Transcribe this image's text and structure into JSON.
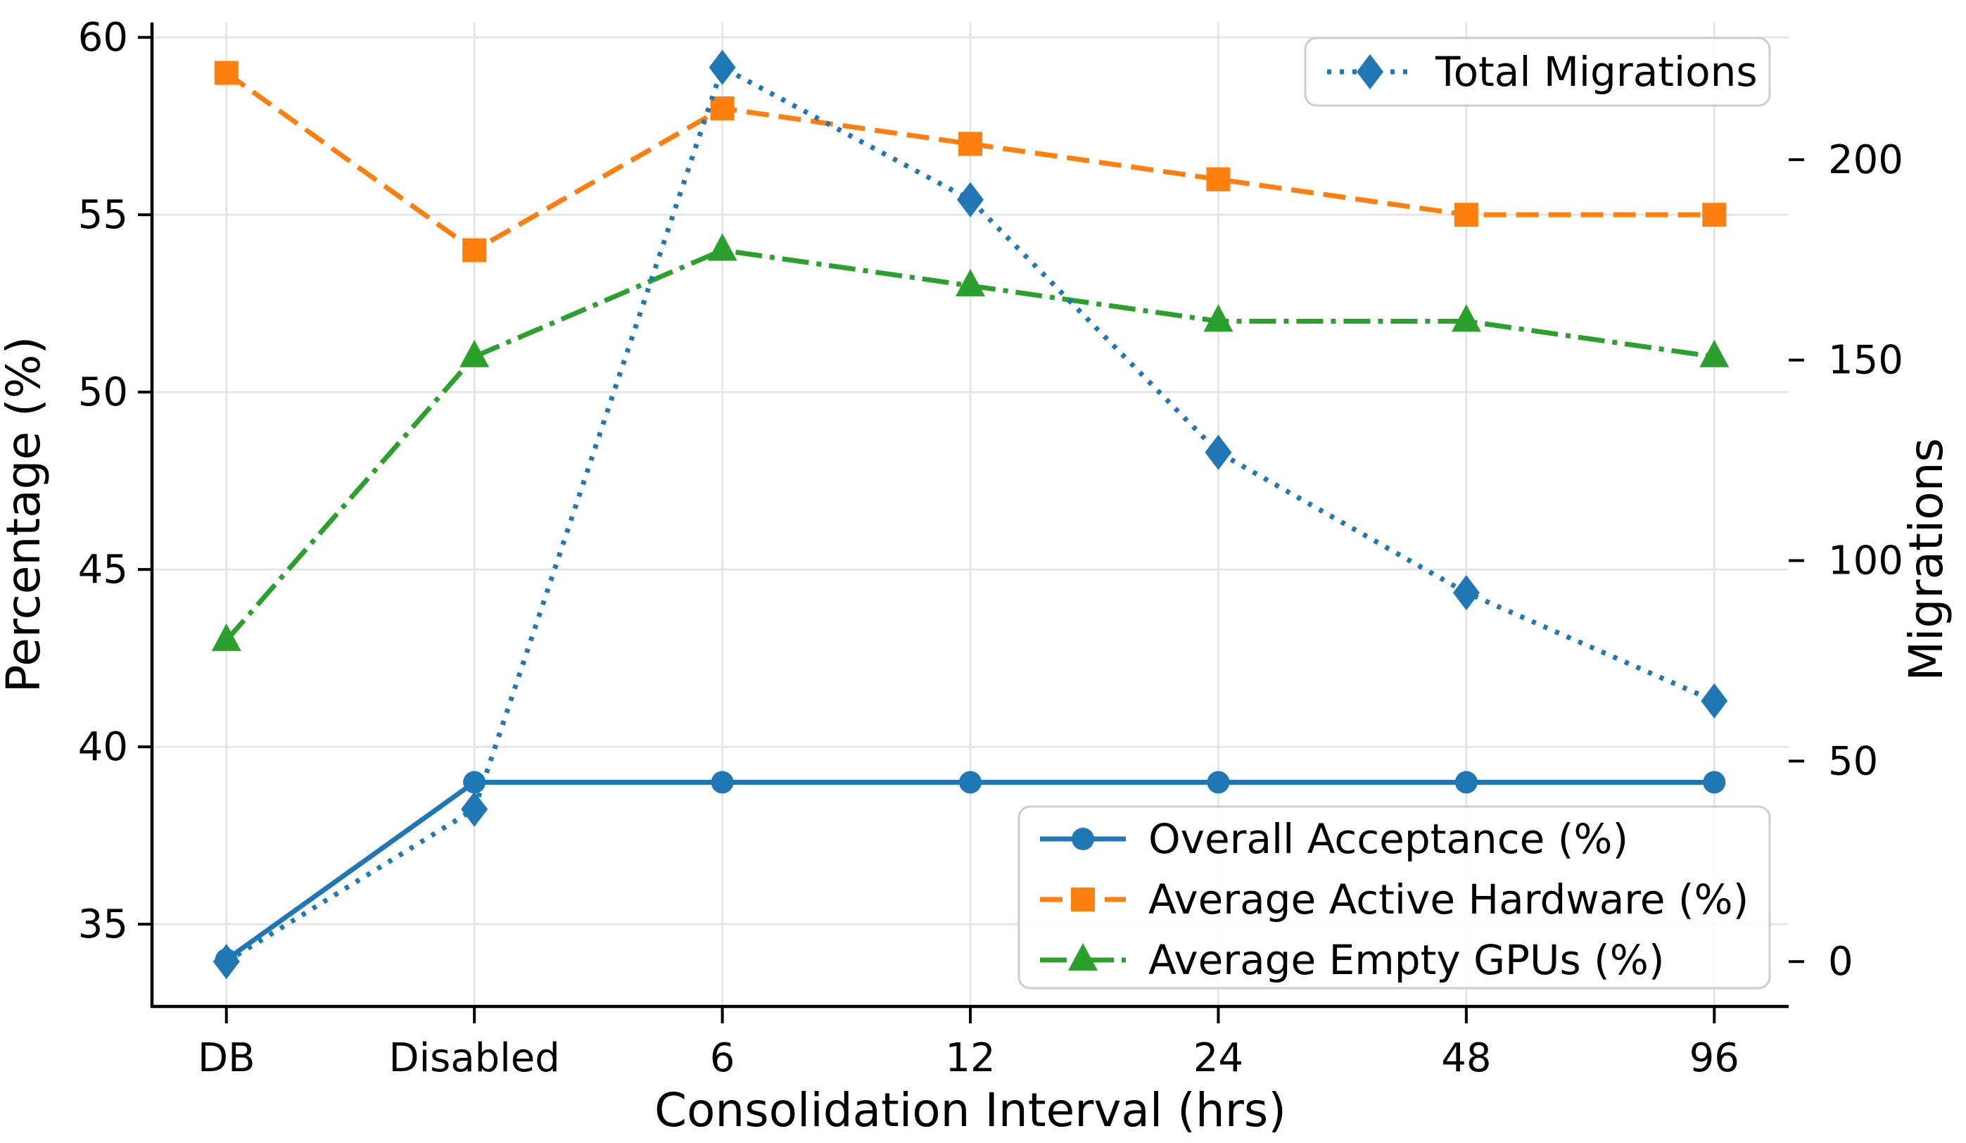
{
  "chart_data": {
    "type": "line",
    "title": "",
    "xlabel": "Consolidation Interval (hrs)",
    "ylabel_left": "Percentage (%)",
    "ylabel_right": "Migrations",
    "categories": [
      "DB",
      "Disabled",
      "6",
      "12",
      "24",
      "48",
      "96"
    ],
    "left_axis": {
      "ticks": [
        35,
        40,
        45,
        50,
        55,
        60
      ],
      "range": [
        32.68,
        60.42
      ],
      "grid": true
    },
    "right_axis": {
      "ticks": [
        0,
        50,
        100,
        150,
        200
      ],
      "range": [
        -11.2,
        234.2
      ],
      "grid": false
    },
    "series": [
      {
        "name": "Overall Acceptance (%)",
        "id": "overall-acceptance",
        "axis": "left",
        "color": "#1f77b4",
        "line_style": "solid",
        "marker": "circle",
        "values": [
          34,
          39,
          39,
          39,
          39,
          39,
          39
        ]
      },
      {
        "name": "Average Active Hardware (%)",
        "id": "average-active-hardware",
        "axis": "left",
        "color": "#ff7f0e",
        "line_style": "dashed",
        "marker": "square",
        "values": [
          59,
          54,
          58,
          57,
          56,
          55,
          55
        ]
      },
      {
        "name": "Average Empty GPUs (%)",
        "id": "average-empty-gpus",
        "axis": "left",
        "color": "#2ca02c",
        "line_style": "dashdot",
        "marker": "triangle",
        "values": [
          43,
          51,
          54,
          53,
          52,
          52,
          51
        ]
      },
      {
        "name": "Total Migrations",
        "id": "total-migrations",
        "axis": "right",
        "color": "#1f77b4",
        "line_style": "dotted",
        "marker": "diamond",
        "values": [
          0,
          38,
          223,
          190,
          127,
          92,
          65
        ]
      }
    ],
    "legends": [
      {
        "position": "upper-right",
        "entries": [
          "Total Migrations"
        ]
      },
      {
        "position": "lower-right",
        "entries": [
          "Overall Acceptance (%)",
          "Average Active Hardware (%)",
          "Average Empty GPUs (%)"
        ]
      }
    ],
    "colors": {
      "blue": "#1f77b4",
      "orange": "#ff7f0e",
      "green": "#2ca02c",
      "grid": "#e2e2e2",
      "spine": "#000000",
      "legend_border": "#cccccc"
    }
  }
}
